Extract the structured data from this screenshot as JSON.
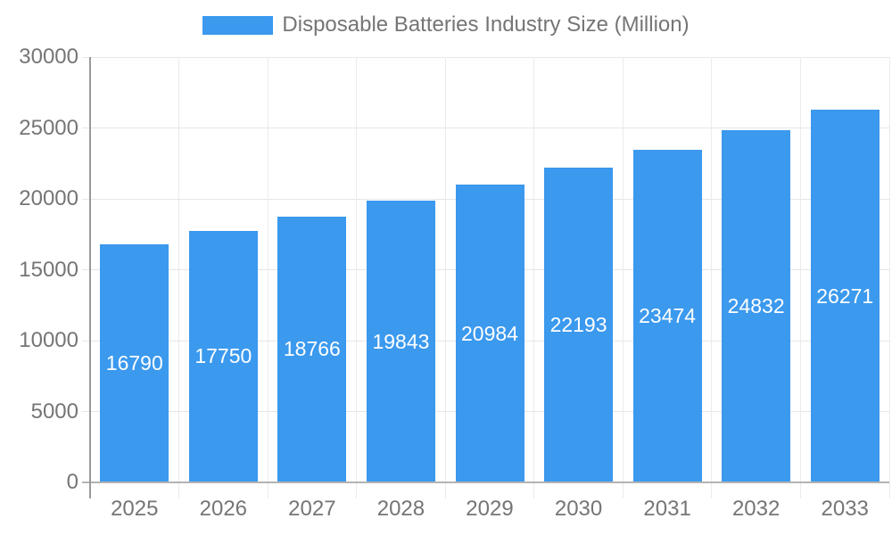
{
  "chart_data": {
    "type": "bar",
    "title": "Disposable Batteries Industry Size (Million)",
    "legend_label": "Disposable Batteries Industry Size (Million)",
    "categories": [
      "2025",
      "2026",
      "2027",
      "2028",
      "2029",
      "2030",
      "2031",
      "2032",
      "2033"
    ],
    "values": [
      16790,
      17750,
      18766,
      19843,
      20984,
      22193,
      23474,
      24832,
      26271
    ],
    "bar_value_labels": [
      "16790",
      "17750",
      "18766",
      "19843",
      "20984",
      "22193",
      "23474",
      "24832",
      "26271"
    ],
    "xlabel": "",
    "ylabel": "",
    "ylim": [
      0,
      30000
    ],
    "y_ticks": [
      0,
      5000,
      10000,
      15000,
      20000,
      25000,
      30000
    ],
    "grid": true,
    "legend_position": "top",
    "colors": {
      "bar": "#3b99ee",
      "bar_label_text": "#ffffff",
      "axis_text": "#757575",
      "gridline": "#e6e6e6",
      "y_axis_line": "#999999",
      "x_axis_line": "#b3b3b3",
      "background": "#ffffff"
    }
  }
}
